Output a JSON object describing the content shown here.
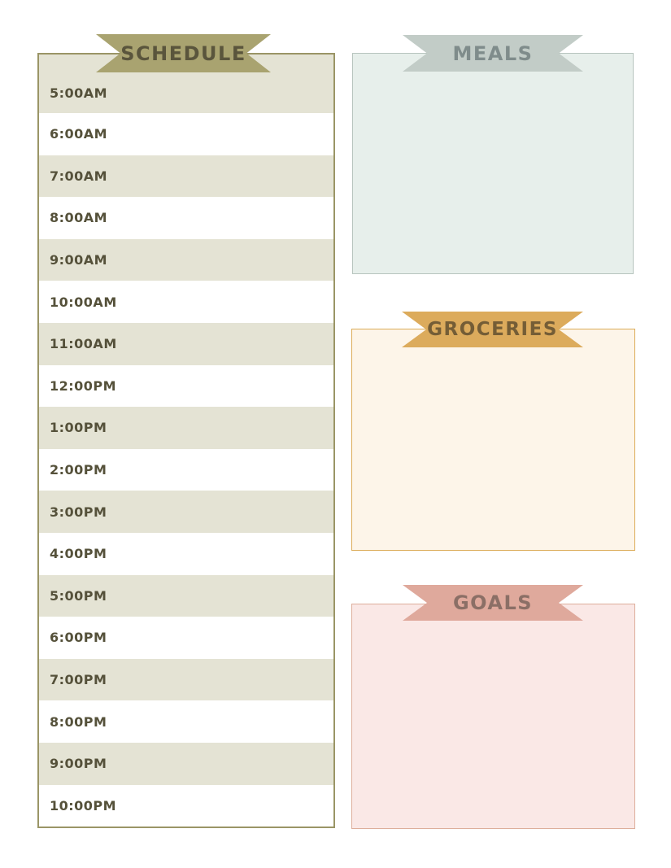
{
  "planner": {
    "schedule": {
      "title": "SCHEDULE",
      "slots": [
        "5:00AM",
        "6:00AM",
        "7:00AM",
        "8:00AM",
        "9:00AM",
        "10:00AM",
        "11:00AM",
        "12:00PM",
        "1:00PM",
        "2:00PM",
        "3:00PM",
        "4:00PM",
        "5:00PM",
        "6:00PM",
        "7:00PM",
        "8:00PM",
        "9:00PM",
        "10:00PM"
      ]
    },
    "panels": [
      {
        "id": "meals",
        "title": "MEALS"
      },
      {
        "id": "groceries",
        "title": "GROCERIES"
      },
      {
        "id": "goals",
        "title": "GOALS"
      }
    ],
    "colors": {
      "schedule_ribbon": "#a9a370",
      "schedule_ribbon_text": "#5a553c",
      "schedule_box_border": "#9a9566",
      "schedule_row_beige": "#e4e3d4",
      "schedule_row_white": "#ffffff",
      "schedule_time_text": "#55513a",
      "meals_ribbon": "#c2ccc7",
      "meals_ribbon_text": "#7f8c8b",
      "meals_box_bg": "#e7efeb",
      "meals_box_border": "#b7c4be",
      "groceries_ribbon": "#dcab5c",
      "groceries_ribbon_text": "#745d36",
      "groceries_box_bg": "#fdf5e9",
      "groceries_box_border": "#dcab57",
      "goals_ribbon": "#dfa99c",
      "goals_ribbon_text": "#8b6f66",
      "goals_box_bg": "#fae8e6",
      "goals_box_border": "#ddae9b"
    }
  }
}
